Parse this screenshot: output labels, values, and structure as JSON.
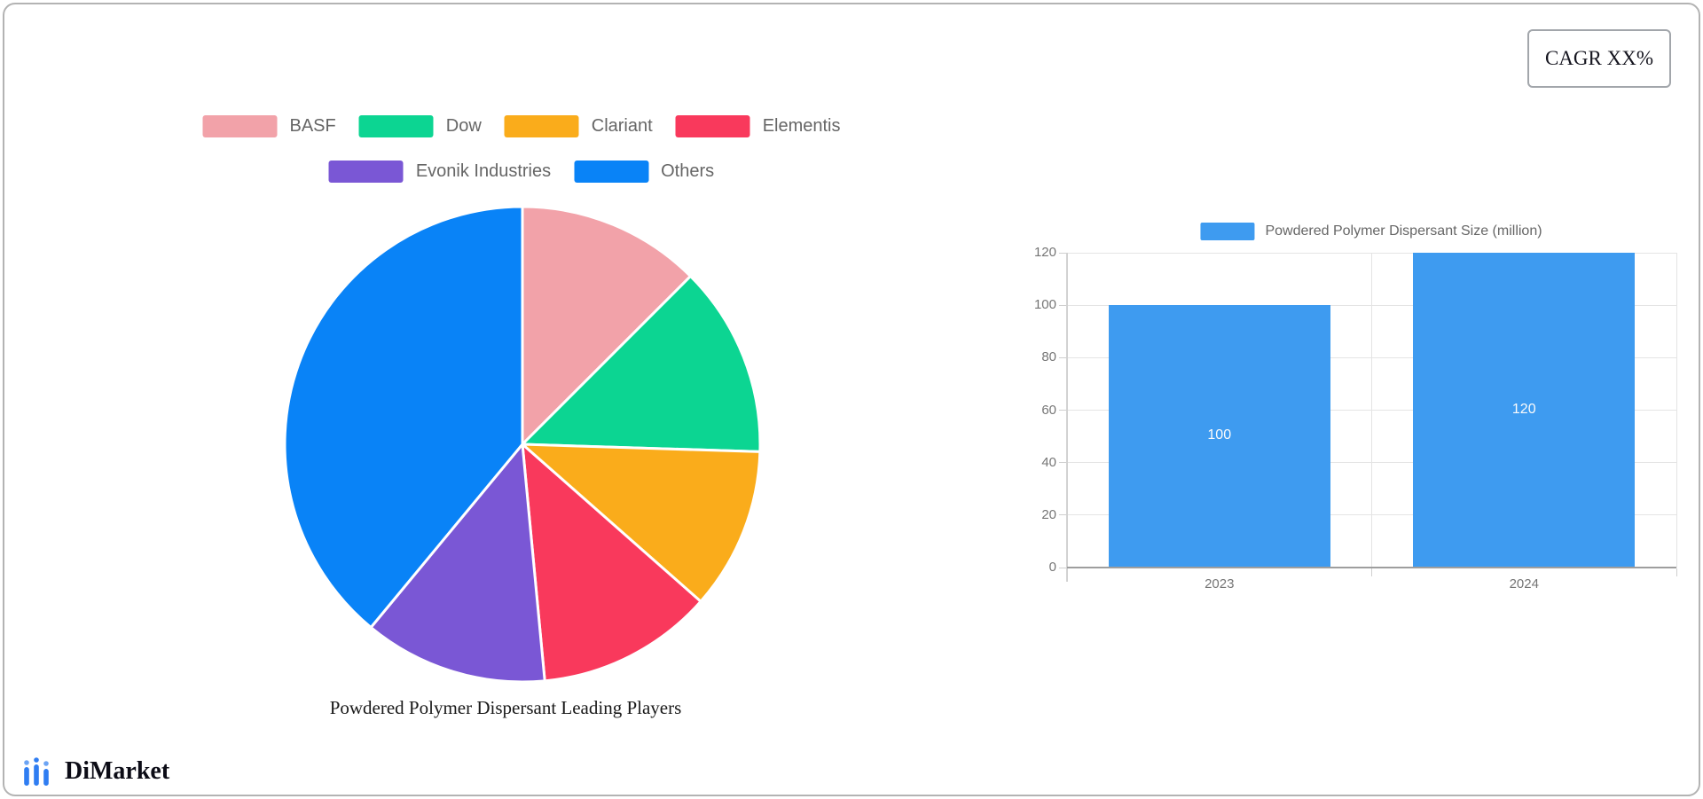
{
  "cagr_box": {
    "label": "CAGR XX%"
  },
  "logo": {
    "text": "DiMarket",
    "icon": "bar-chart-icon",
    "icon_color": "#2f7df2"
  },
  "frame": {
    "border_color": "#b3b3b3"
  },
  "chart_data": [
    {
      "type": "pie",
      "title": "Powdered Polymer Dispersant Leading Players",
      "labels": [
        "BASF",
        "Dow",
        "Clariant",
        "Elementis",
        "Evonik Industries",
        "Others"
      ],
      "values": [
        12.5,
        13,
        11,
        12,
        12.5,
        39
      ],
      "colors": [
        "#F2A2A9",
        "#0CD592",
        "#FAAC1B",
        "#F9395C",
        "#7A57D5",
        "#0983F7"
      ],
      "legend_rows": [
        [
          0,
          1,
          2,
          3
        ],
        [
          4,
          5
        ]
      ],
      "legend_position": "top",
      "start_angle_deg": 0,
      "slice_gap_color": "#ffffff"
    },
    {
      "type": "bar",
      "categories": [
        "2023",
        "2024"
      ],
      "series": [
        {
          "name": "Powdered Polymer Dispersant Size (million)",
          "values": [
            100,
            120
          ]
        }
      ],
      "bar_color": "#3E9BF0",
      "value_label_color": "#fbfbfb",
      "ylim": [
        0,
        120
      ],
      "yticks": [
        0,
        20,
        40,
        60,
        80,
        100,
        120
      ],
      "grid": true,
      "legend_position": "top"
    }
  ]
}
